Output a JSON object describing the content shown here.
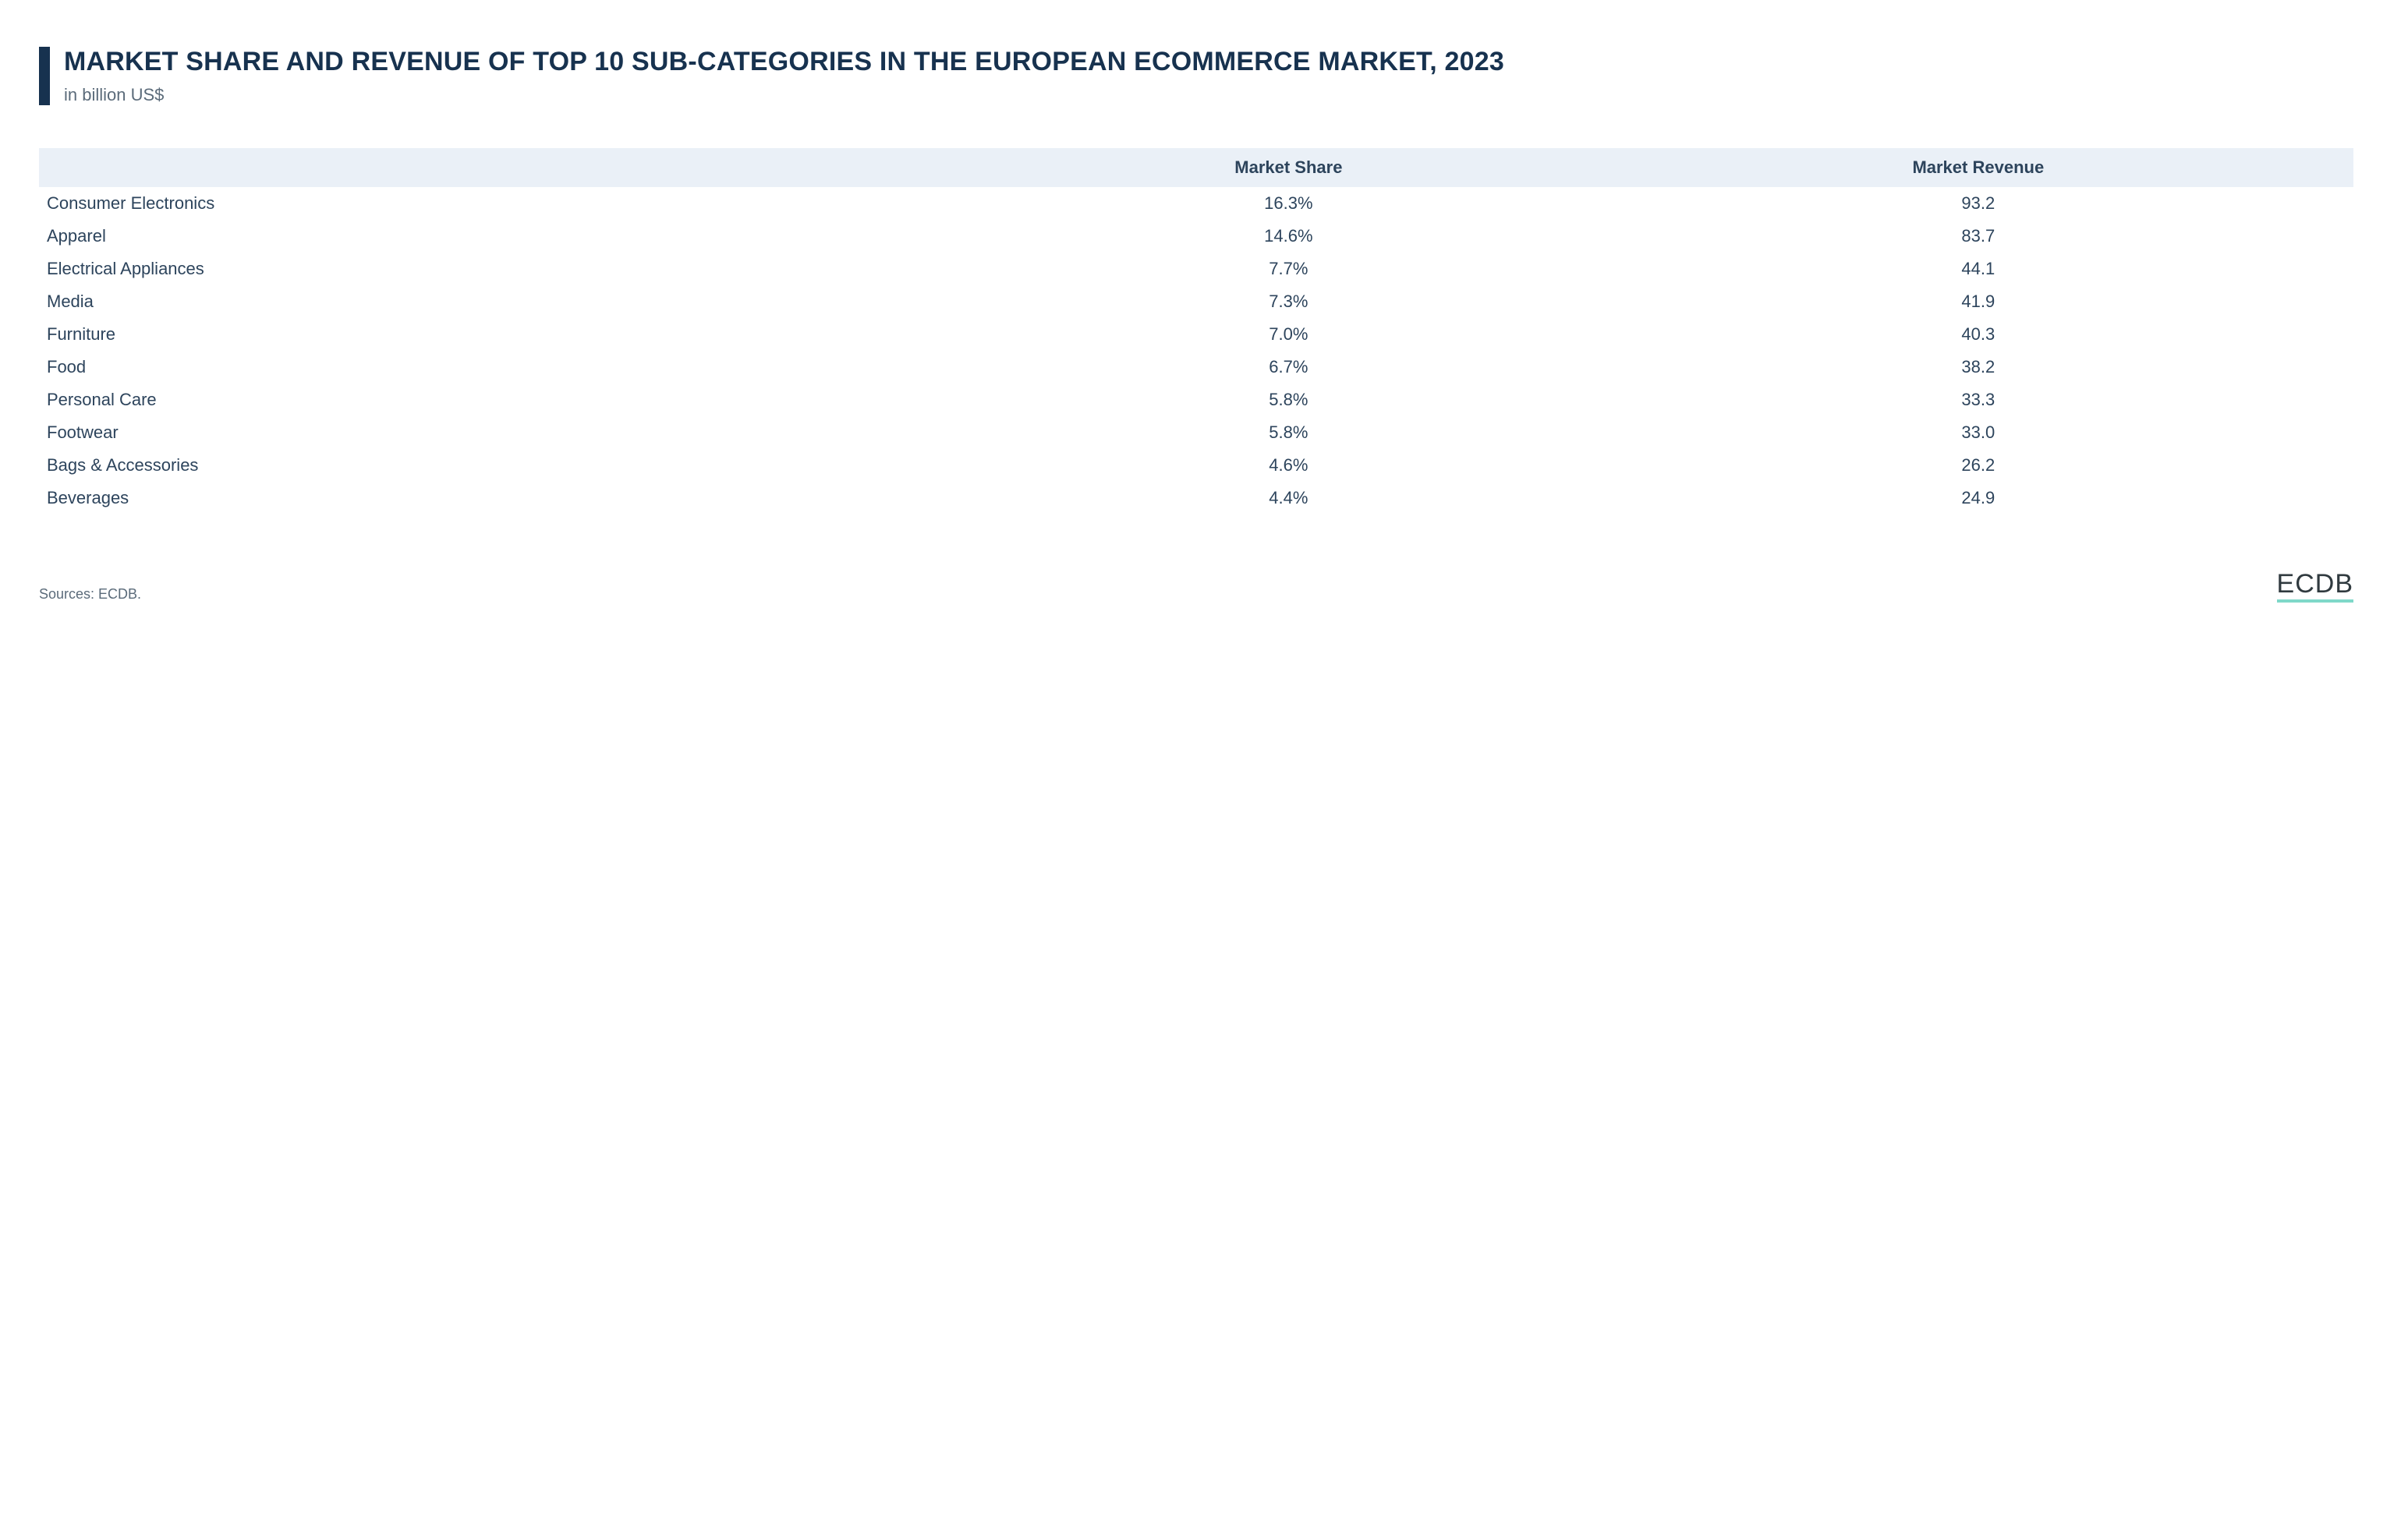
{
  "title": "MARKET SHARE AND REVENUE OF TOP 10 SUB-CATEGORIES IN THE EUROPEAN ECOMMERCE MARKET, 2023",
  "subtitle": "in billion US$",
  "table": {
    "type": "table",
    "header_bg": "#eaf0f7",
    "text_color": "#2d445c",
    "header_fontweight": 700,
    "body_fontweight": 400,
    "fontsize_pt": 16,
    "columns": [
      {
        "label": "",
        "align": "left"
      },
      {
        "label": "Market Share",
        "align": "center"
      },
      {
        "label": "Market Revenue",
        "align": "center"
      }
    ],
    "rows": [
      [
        "Consumer Electronics",
        "16.3%",
        "93.2"
      ],
      [
        "Apparel",
        "14.6%",
        "83.7"
      ],
      [
        "Electrical Appliances",
        "7.7%",
        "44.1"
      ],
      [
        "Media",
        "7.3%",
        "41.9"
      ],
      [
        "Furniture",
        "7.0%",
        "40.3"
      ],
      [
        "Food",
        "6.7%",
        "38.2"
      ],
      [
        "Personal Care",
        "5.8%",
        "33.3"
      ],
      [
        "Footwear",
        "5.8%",
        "33.0"
      ],
      [
        "Bags & Accessories",
        "4.6%",
        "26.2"
      ],
      [
        "Beverages",
        "4.4%",
        "24.9"
      ]
    ]
  },
  "sources": "Sources: ECDB.",
  "logo": "ECDB",
  "style": {
    "background_color": "#ffffff",
    "accent_bar_color": "#17324f",
    "title_color": "#17324f",
    "title_fontsize_pt": 26,
    "title_fontweight": 700,
    "subtitle_color": "#5b6b7a",
    "subtitle_fontsize_pt": 16,
    "sources_color": "#5b6b7a",
    "logo_color": "#303a3f",
    "logo_underline_color": "#7fd8c9",
    "font_family": "Segoe UI / Helvetica Neue / Arial"
  }
}
